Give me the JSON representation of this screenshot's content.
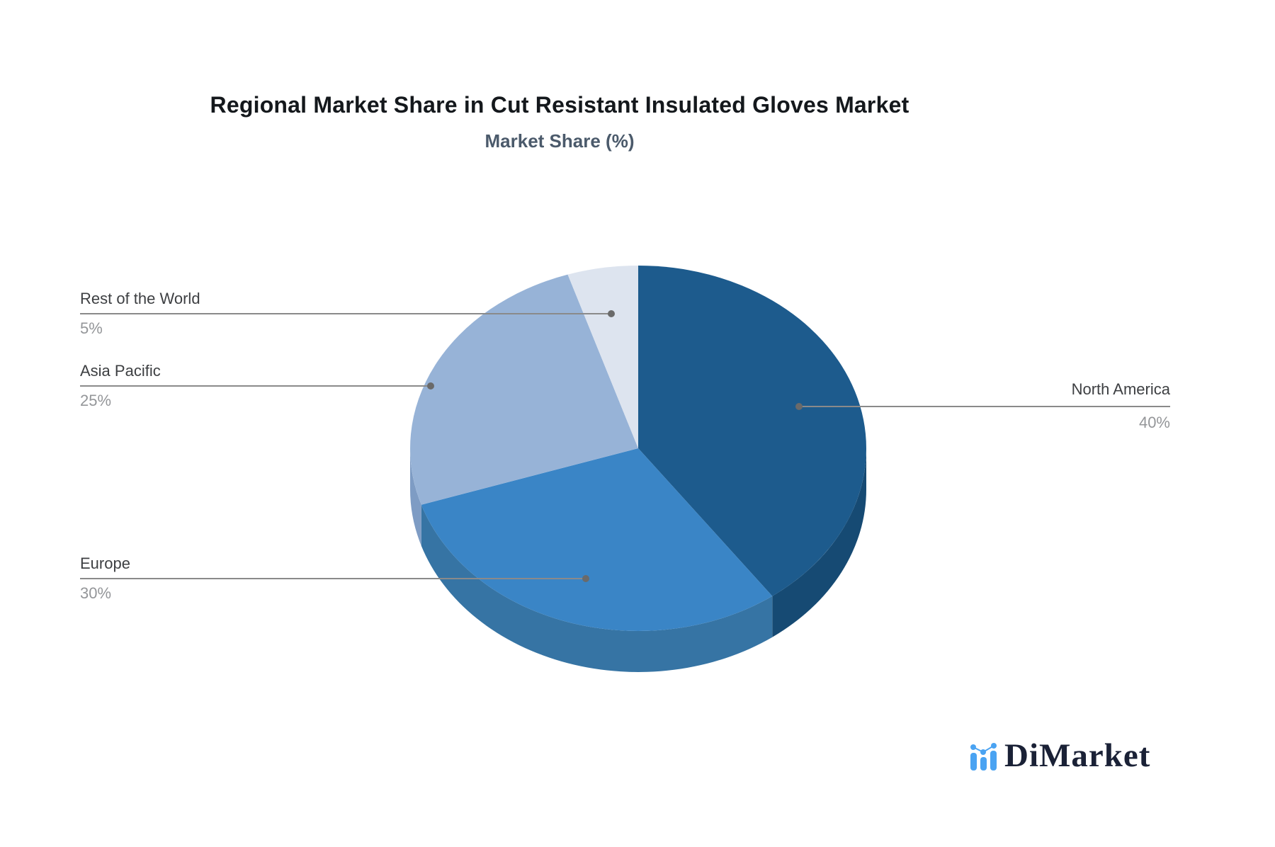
{
  "header": {
    "title": "Regional Market Share in Cut Resistant Insulated Gloves Market",
    "subtitle": "Market Share (%)"
  },
  "chart_data": {
    "type": "pie",
    "title": "Regional Market Share in Cut Resistant Insulated Gloves Market",
    "subtitle": "Market Share (%)",
    "unit": "%",
    "labels": [
      "North America",
      "Europe",
      "Asia Pacific",
      "Rest of the World"
    ],
    "values": [
      40,
      30,
      25,
      5
    ],
    "colors": [
      "#1d5b8d",
      "#3a85c6",
      "#97b3d7",
      "#dde4ef"
    ],
    "side_colors": [
      "#164a73",
      "#3674a4",
      "#7e9cc4",
      "#b9c3d6"
    ],
    "start_angle_deg": 0,
    "direction": "clockwise",
    "effect": "3d",
    "legend_position": "callout-labels",
    "leader_line_color": "#8a8a8a",
    "leader_dot_color": "#6a6a6a"
  },
  "callouts": [
    {
      "label": "Rest of the World",
      "value": "5%"
    },
    {
      "label": "Asia Pacific",
      "value": "25%"
    },
    {
      "label": "Europe",
      "value": "30%"
    },
    {
      "label": "North America",
      "value": "40%"
    }
  ],
  "logo": {
    "text": "DiMarket",
    "icon": "mini-bar-chart-logo-icon",
    "accent_color": "#4aa3f2",
    "text_color": "#1a2136"
  }
}
